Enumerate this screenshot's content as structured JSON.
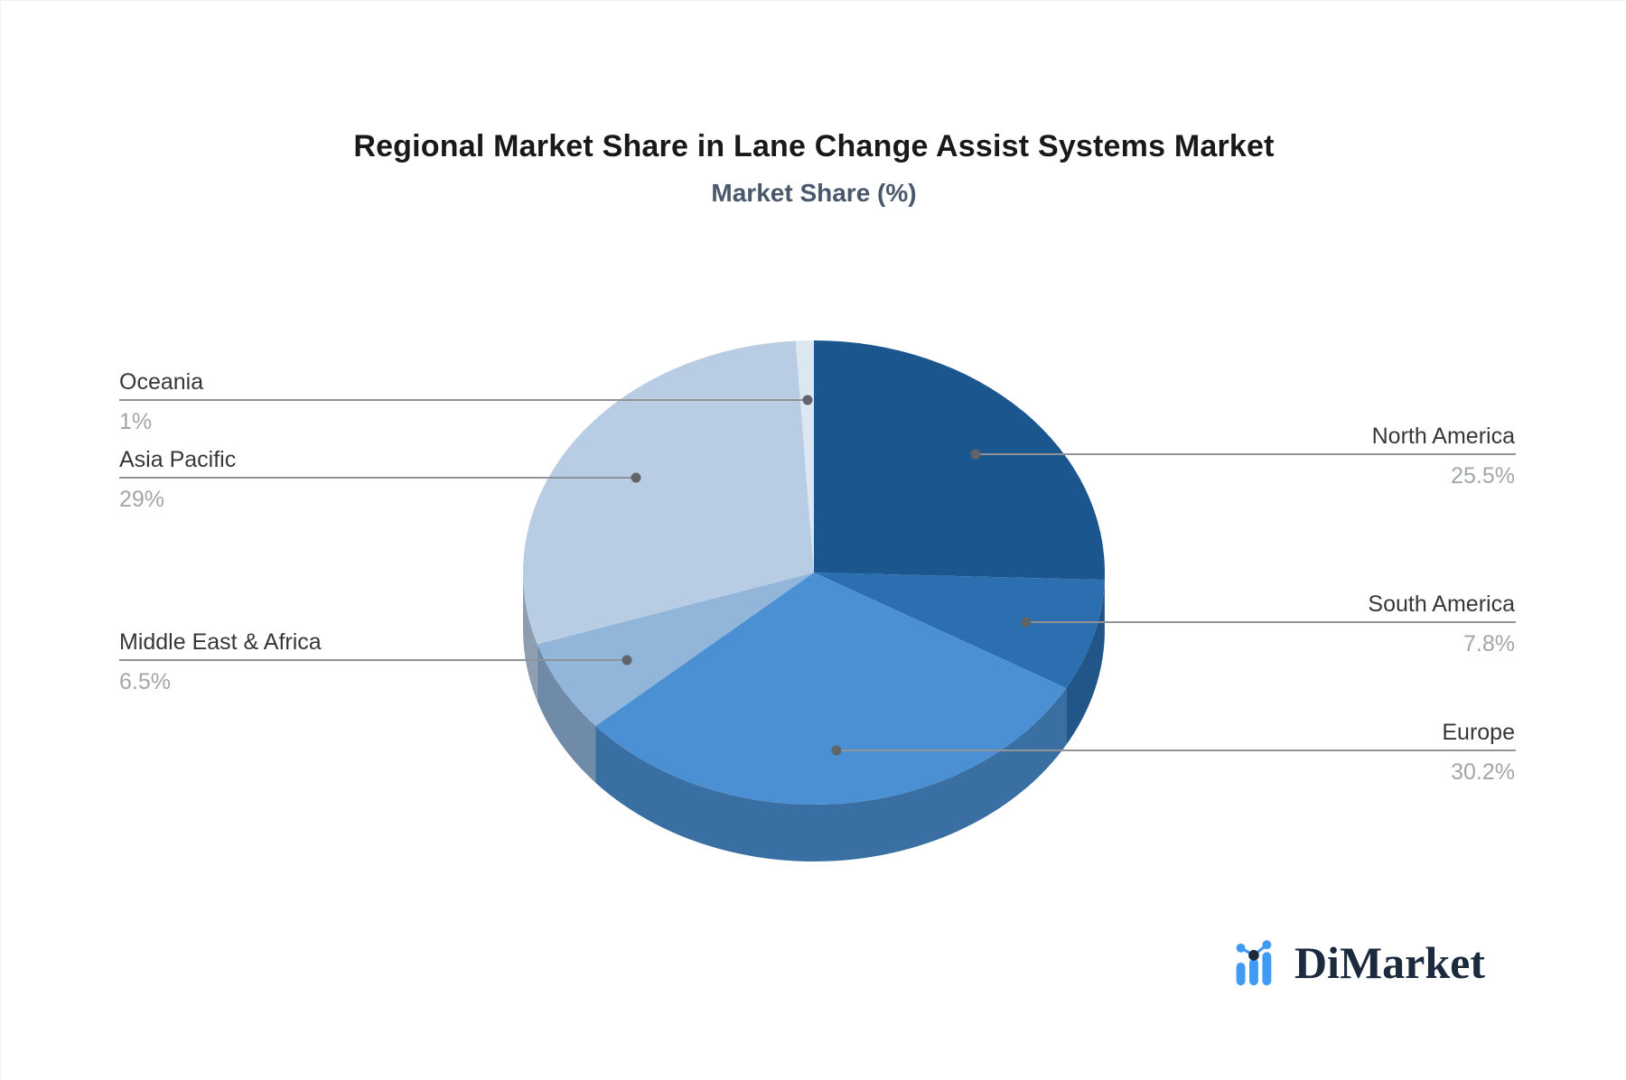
{
  "header": {
    "title": "Regional Market Share in Lane Change Assist Systems Market",
    "subtitle": "Market Share (%)"
  },
  "brand": {
    "name": "DiMarket",
    "icon": "bar-line-chart-logo-icon",
    "icon_color": "#3f9bf4",
    "icon_accent_color": "#1c2a3d",
    "text_color": "#1c2a3d"
  },
  "chart_data": {
    "type": "pie",
    "style": "3d",
    "title": "Regional Market Share in Lane Change Assist Systems Market",
    "subtitle": "Market Share (%)",
    "unit": "%",
    "direction": "clockwise",
    "start_angle_deg": 0,
    "legend_position": "connector-labels-left-right",
    "slices": [
      {
        "label": "North America",
        "value": 25.5,
        "display": "25.5%",
        "color": "#1c568e"
      },
      {
        "label": "South America",
        "value": 7.8,
        "display": "7.8%",
        "color": "#2c6fb1"
      },
      {
        "label": "Europe",
        "value": 30.2,
        "display": "30.2%",
        "color": "#4a90d2"
      },
      {
        "label": "Middle East & Africa",
        "value": 6.5,
        "display": "6.5%",
        "color": "#92b5da"
      },
      {
        "label": "Asia Pacific",
        "value": 29,
        "display": "29%",
        "color": "#b8cde4"
      },
      {
        "label": "Oceania",
        "value": 1,
        "display": "1%",
        "color": "#dde7f1"
      }
    ],
    "connector_color": "#8f9296",
    "connector_dot_color": "#61656a"
  }
}
